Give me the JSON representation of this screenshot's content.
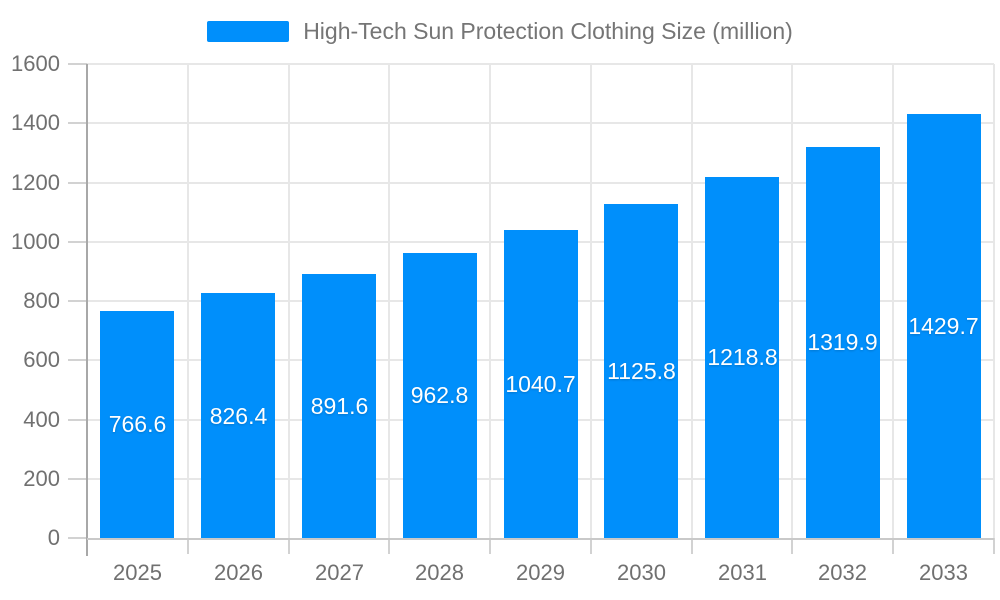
{
  "legend": {
    "label": "High-Tech Sun Protection Clothing Size (million)"
  },
  "colors": {
    "bar": "#008FFB",
    "grid": "#e7e7e7",
    "tick": "#d2d2d2",
    "axis_line": "#a8a8a8",
    "axis_text": "#707070",
    "legend_text": "#757575",
    "data_label": "#ffffff"
  },
  "chart_data": {
    "type": "bar",
    "title": "High-Tech Sun Protection Clothing Size (million)",
    "categories": [
      "2025",
      "2026",
      "2027",
      "2028",
      "2029",
      "2030",
      "2031",
      "2032",
      "2033"
    ],
    "series": [
      {
        "name": "High-Tech Sun Protection Clothing Size (million)",
        "values": [
          766.6,
          826.4,
          891.6,
          962.8,
          1040.7,
          1125.8,
          1218.8,
          1319.9,
          1429.7
        ]
      }
    ],
    "xlabel": "",
    "ylabel": "",
    "ylim": [
      0,
      1600
    ],
    "ytick_step": 200,
    "ytick_labels": [
      "0",
      "200",
      "400",
      "600",
      "800",
      "1000",
      "1200",
      "1400",
      "1600"
    ],
    "grid": true,
    "legend_position": "top",
    "data_labels": "inside-center"
  }
}
